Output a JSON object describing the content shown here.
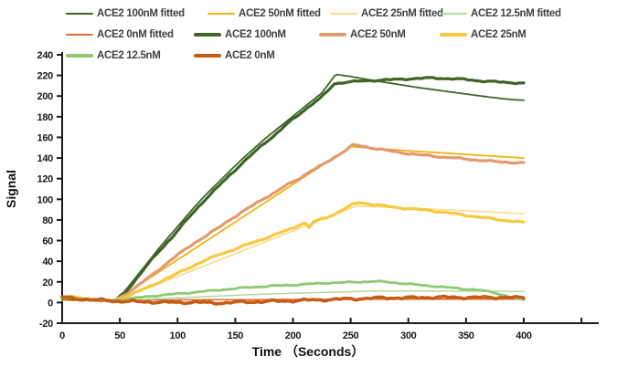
{
  "chart_data": {
    "type": "line",
    "title": "",
    "xlabel": "Time （Seconds）",
    "ylabel": "Signal",
    "xlim": [
      0,
      461
    ],
    "ylim": [
      -20,
      240
    ],
    "grid": false,
    "legend_position": "top",
    "xticks": [
      0,
      50,
      100,
      150,
      200,
      250,
      300,
      350,
      400
    ],
    "minor_xticks": [
      450
    ],
    "yticks": [
      -20,
      0,
      20,
      40,
      60,
      80,
      100,
      120,
      140,
      160,
      180,
      200,
      220,
      240
    ],
    "series": [
      {
        "id": "fit0",
        "name": "ACE2 0nM fitted",
        "role": "fitted",
        "color": "#d96f35",
        "noise": 0,
        "points": [
          [
            0,
            3
          ],
          [
            46,
            2.2
          ],
          [
            100,
            2.6
          ],
          [
            200,
            3
          ],
          [
            300,
            3.2
          ],
          [
            400,
            3.3
          ]
        ]
      },
      {
        "id": "fit12",
        "name": "ACE2 12.5nM fitted",
        "role": "fitted",
        "color": "#b2d99c",
        "noise": 0,
        "points": [
          [
            0,
            2
          ],
          [
            40,
            1.5
          ],
          [
            46,
            1.5
          ],
          [
            80,
            3.5
          ],
          [
            120,
            5.5
          ],
          [
            160,
            7.5
          ],
          [
            200,
            9
          ],
          [
            250,
            10.5
          ],
          [
            260,
            11
          ],
          [
            300,
            11
          ],
          [
            350,
            11
          ],
          [
            400,
            10.8
          ]
        ]
      },
      {
        "id": "fit25",
        "name": "ACE2 25nM fitted",
        "role": "fitted",
        "color": "#f8dc8e",
        "noise": 0,
        "points": [
          [
            0,
            2
          ],
          [
            40,
            1.5
          ],
          [
            46,
            1.5
          ],
          [
            255,
            93.5
          ],
          [
            290,
            92
          ],
          [
            330,
            90
          ],
          [
            365,
            88
          ],
          [
            400,
            86
          ]
        ]
      },
      {
        "id": "fit50",
        "name": "ACE2 50nM fitted",
        "role": "fitted",
        "color": "#efb310",
        "noise": 0,
        "points": [
          [
            0,
            2.5
          ],
          [
            40,
            2
          ],
          [
            46,
            2
          ],
          [
            250,
            151
          ],
          [
            300,
            147
          ],
          [
            350,
            143.5
          ],
          [
            400,
            140
          ]
        ]
      },
      {
        "id": "fit100",
        "name": "ACE2 100nM fitted",
        "role": "fitted",
        "color": "#3e6526",
        "noise": 0,
        "points": [
          [
            0,
            3
          ],
          [
            40,
            2
          ],
          [
            46,
            2
          ],
          [
            55,
            12
          ],
          [
            65,
            26
          ],
          [
            75,
            40
          ],
          [
            85,
            54
          ],
          [
            95,
            67
          ],
          [
            105,
            80
          ],
          [
            115,
            93
          ],
          [
            125,
            105
          ],
          [
            135,
            116
          ],
          [
            145,
            127
          ],
          [
            155,
            138
          ],
          [
            165,
            148
          ],
          [
            175,
            158
          ],
          [
            185,
            167
          ],
          [
            195,
            176
          ],
          [
            205,
            185
          ],
          [
            215,
            194
          ],
          [
            225,
            203
          ],
          [
            231,
            212
          ],
          [
            237,
            221
          ],
          [
            250,
            219
          ],
          [
            270,
            215
          ],
          [
            290,
            211.5
          ],
          [
            310,
            208
          ],
          [
            330,
            205
          ],
          [
            350,
            202
          ],
          [
            370,
            199
          ],
          [
            390,
            196.5
          ],
          [
            400,
            196
          ]
        ]
      },
      {
        "id": "data100",
        "name": "ACE2 100nM",
        "role": "data",
        "color": "#3e6526",
        "noise": 0.9,
        "points": [
          [
            0,
            5
          ],
          [
            10,
            4
          ],
          [
            20,
            3
          ],
          [
            30,
            2.5
          ],
          [
            40,
            2
          ],
          [
            46,
            2
          ],
          [
            55,
            10
          ],
          [
            65,
            24
          ],
          [
            75,
            38
          ],
          [
            85,
            51
          ],
          [
            95,
            63
          ],
          [
            105,
            76
          ],
          [
            115,
            89
          ],
          [
            125,
            101
          ],
          [
            135,
            112
          ],
          [
            145,
            123
          ],
          [
            155,
            134
          ],
          [
            165,
            144
          ],
          [
            175,
            154
          ],
          [
            185,
            163
          ],
          [
            195,
            173
          ],
          [
            205,
            182
          ],
          [
            215,
            191
          ],
          [
            225,
            199
          ],
          [
            231,
            206
          ],
          [
            236,
            212
          ],
          [
            245,
            213.5
          ],
          [
            260,
            214.5
          ],
          [
            275,
            215.5
          ],
          [
            290,
            216
          ],
          [
            305,
            217
          ],
          [
            320,
            217.5
          ],
          [
            335,
            217
          ],
          [
            350,
            216
          ],
          [
            365,
            214.5
          ],
          [
            380,
            213.5
          ],
          [
            400,
            212.5
          ]
        ]
      },
      {
        "id": "data50",
        "name": "ACE2 50nM",
        "role": "data",
        "color": "#e49a6e",
        "noise": 0.9,
        "points": [
          [
            0,
            5
          ],
          [
            10,
            4
          ],
          [
            20,
            3
          ],
          [
            30,
            2.5
          ],
          [
            40,
            2
          ],
          [
            46,
            2
          ],
          [
            55,
            8
          ],
          [
            65,
            16
          ],
          [
            75,
            24
          ],
          [
            85,
            33
          ],
          [
            95,
            42
          ],
          [
            105,
            50
          ],
          [
            115,
            58
          ],
          [
            125,
            65
          ],
          [
            135,
            72
          ],
          [
            145,
            80
          ],
          [
            155,
            87
          ],
          [
            165,
            94
          ],
          [
            175,
            101
          ],
          [
            185,
            107
          ],
          [
            195,
            114
          ],
          [
            205,
            120
          ],
          [
            215,
            127
          ],
          [
            225,
            133
          ],
          [
            235,
            140
          ],
          [
            245,
            147
          ],
          [
            252,
            152.5
          ],
          [
            258,
            152
          ],
          [
            265,
            150.5
          ],
          [
            275,
            148.5
          ],
          [
            285,
            146.5
          ],
          [
            295,
            145
          ],
          [
            310,
            143
          ],
          [
            325,
            141.5
          ],
          [
            340,
            140
          ],
          [
            355,
            138.5
          ],
          [
            370,
            137
          ],
          [
            385,
            136
          ],
          [
            400,
            135
          ]
        ]
      },
      {
        "id": "data25",
        "name": "ACE2 25nM",
        "role": "data",
        "color": "#f8c83e",
        "noise": 0.9,
        "points": [
          [
            0,
            6
          ],
          [
            10,
            5
          ],
          [
            20,
            4
          ],
          [
            30,
            3
          ],
          [
            40,
            2
          ],
          [
            46,
            2
          ],
          [
            60,
            8
          ],
          [
            75,
            15
          ],
          [
            90,
            23
          ],
          [
            105,
            31
          ],
          [
            120,
            39
          ],
          [
            135,
            46
          ],
          [
            150,
            52
          ],
          [
            165,
            58
          ],
          [
            180,
            64
          ],
          [
            195,
            70
          ],
          [
            205,
            75
          ],
          [
            210,
            77
          ],
          [
            214,
            73
          ],
          [
            218,
            78
          ],
          [
            225,
            81
          ],
          [
            235,
            85
          ],
          [
            245,
            91
          ],
          [
            252,
            95
          ],
          [
            257,
            97
          ],
          [
            263,
            96
          ],
          [
            270,
            95
          ],
          [
            280,
            93.5
          ],
          [
            290,
            92
          ],
          [
            300,
            91
          ],
          [
            310,
            90
          ],
          [
            320,
            89
          ],
          [
            330,
            87.5
          ],
          [
            340,
            86
          ],
          [
            350,
            84.5
          ],
          [
            360,
            83
          ],
          [
            370,
            81.5
          ],
          [
            380,
            80
          ],
          [
            390,
            79
          ],
          [
            400,
            77.5
          ]
        ]
      },
      {
        "id": "data12",
        "name": "ACE2 12.5nM",
        "role": "data",
        "color": "#8fc873",
        "noise": 0.7,
        "points": [
          [
            0,
            5
          ],
          [
            10,
            4
          ],
          [
            20,
            3.5
          ],
          [
            30,
            2.5
          ],
          [
            40,
            2
          ],
          [
            46,
            2
          ],
          [
            60,
            4
          ],
          [
            80,
            6.5
          ],
          [
            100,
            8.5
          ],
          [
            120,
            10.5
          ],
          [
            140,
            12.5
          ],
          [
            160,
            14.5
          ],
          [
            180,
            16
          ],
          [
            200,
            17
          ],
          [
            215,
            18
          ],
          [
            230,
            19
          ],
          [
            245,
            19.5
          ],
          [
            260,
            20
          ],
          [
            270,
            20.5
          ],
          [
            280,
            20
          ],
          [
            290,
            19
          ],
          [
            300,
            18
          ],
          [
            310,
            17
          ],
          [
            320,
            16
          ],
          [
            330,
            15
          ],
          [
            340,
            14
          ],
          [
            350,
            13
          ],
          [
            358,
            12.5
          ],
          [
            365,
            11.5
          ],
          [
            372,
            10
          ],
          [
            380,
            8
          ],
          [
            388,
            5.5
          ],
          [
            394,
            3.5
          ],
          [
            400,
            2.5
          ]
        ]
      },
      {
        "id": "data0",
        "name": "ACE2 0nM",
        "role": "data",
        "color": "#c65c15",
        "noise": 1.4,
        "points": [
          [
            0,
            5
          ],
          [
            15,
            3.5
          ],
          [
            30,
            2.5
          ],
          [
            45,
            1.5
          ],
          [
            60,
            1
          ],
          [
            80,
            0.5
          ],
          [
            100,
            0
          ],
          [
            115,
            0.5
          ],
          [
            130,
            -0.5
          ],
          [
            145,
            0
          ],
          [
            160,
            0.5
          ],
          [
            175,
            1
          ],
          [
            190,
            1.5
          ],
          [
            205,
            2
          ],
          [
            220,
            2.5
          ],
          [
            235,
            3
          ],
          [
            250,
            3.5
          ],
          [
            265,
            4
          ],
          [
            280,
            4.5
          ],
          [
            300,
            4.5
          ],
          [
            320,
            5
          ],
          [
            340,
            5
          ],
          [
            360,
            4.8
          ],
          [
            380,
            5
          ],
          [
            400,
            4.5
          ]
        ]
      }
    ]
  },
  "legend": {
    "items": [
      {
        "label": "ACE2 100nM fitted",
        "color": "#3e6526",
        "thick": false
      },
      {
        "label": "ACE2 50nM fitted",
        "color": "#efb310",
        "thick": false
      },
      {
        "label": "ACE2 25nM fitted",
        "color": "#f8dc8e",
        "thick": false
      },
      {
        "label": "ACE2 12.5nM fitted",
        "color": "#b2d99c",
        "thick": false
      },
      {
        "label": "ACE2 0nM fitted",
        "color": "#d96f35",
        "thick": false
      },
      {
        "label": "ACE2 100nM",
        "color": "#3e6526",
        "thick": true
      },
      {
        "label": "ACE2 50nM",
        "color": "#e49a6e",
        "thick": true
      },
      {
        "label": "ACE2 25nM",
        "color": "#f8c83e",
        "thick": true
      },
      {
        "label": "ACE2 12.5nM",
        "color": "#8fc873",
        "thick": true
      },
      {
        "label": "ACE2 0nM",
        "color": "#c65c15",
        "thick": true
      }
    ]
  },
  "axes": {
    "x_title": "Time （Seconds）",
    "y_title": "Signal"
  }
}
